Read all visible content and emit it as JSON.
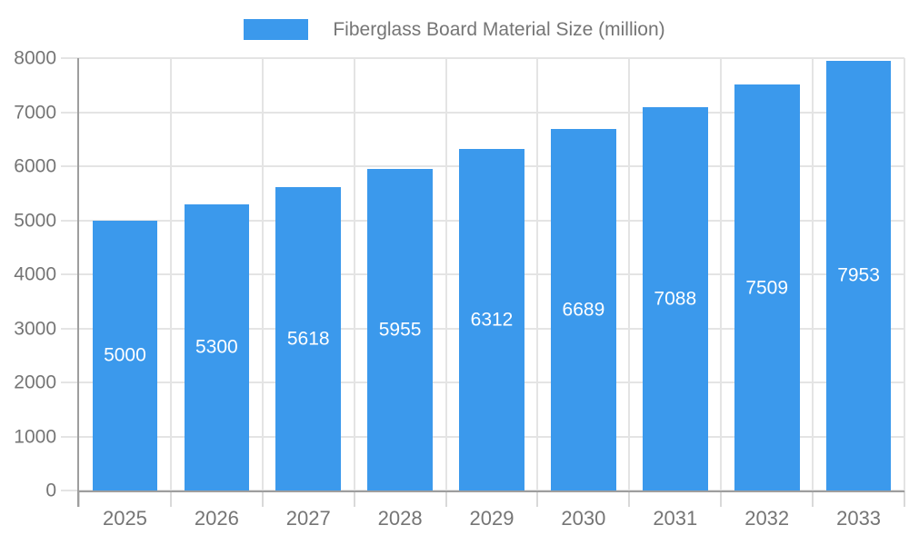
{
  "legend": {
    "label": "Fiberglass Board Material Size (million)"
  },
  "chart_data": {
    "type": "bar",
    "title": "Fiberglass Board Material Size (million)",
    "categories": [
      "2025",
      "2026",
      "2027",
      "2028",
      "2029",
      "2030",
      "2031",
      "2032",
      "2033"
    ],
    "values": [
      5000,
      5300,
      5618,
      5955,
      6312,
      6689,
      7088,
      7509,
      7953
    ],
    "xlabel": "",
    "ylabel": "",
    "ylim": [
      0,
      8000
    ],
    "yticks": [
      0,
      1000,
      2000,
      3000,
      4000,
      5000,
      6000,
      7000,
      8000
    ],
    "grid": true,
    "legend_position": "top-center",
    "bar_labels_inside": true,
    "colors": {
      "bar": "#3b99ec",
      "grid": "#e4e4e4",
      "tick": "#d9d9d9",
      "axis": "#9e9e9e",
      "text": "#757575",
      "bar_label": "#ffffff",
      "background": "#ffffff"
    }
  }
}
